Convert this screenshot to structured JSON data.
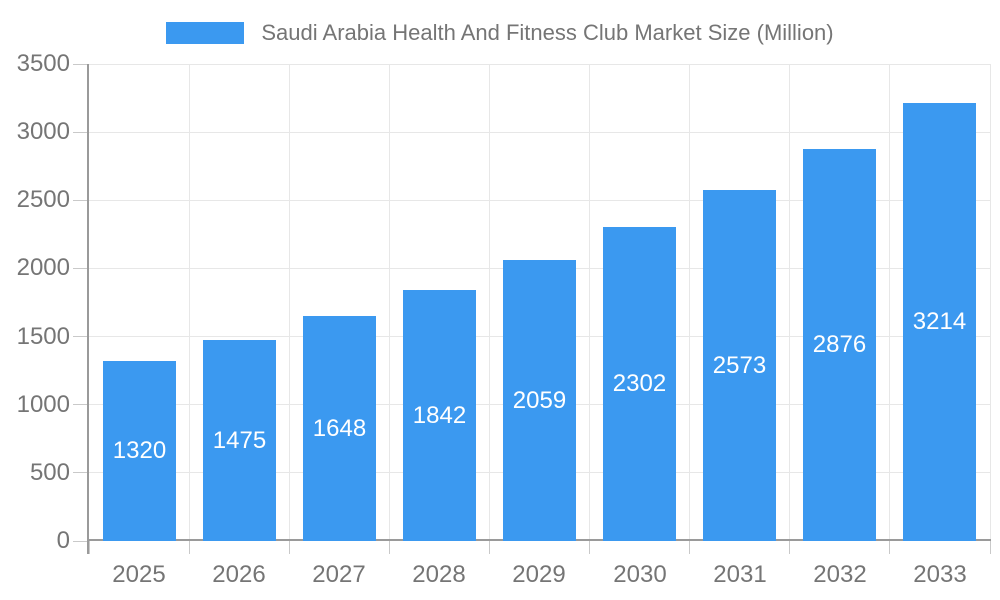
{
  "chart_data": {
    "type": "bar",
    "title": "Saudi Arabia Health And Fitness Club Market Size (Million)",
    "categories": [
      "2025",
      "2026",
      "2027",
      "2028",
      "2029",
      "2030",
      "2031",
      "2032",
      "2033"
    ],
    "values": [
      1320,
      1475,
      1648,
      1842,
      2059,
      2302,
      2573,
      2876,
      3214
    ],
    "xlabel": "",
    "ylabel": "",
    "ylim": [
      0,
      3500
    ],
    "ytick_step": 500,
    "ytick_labels": [
      "0",
      "500",
      "1000",
      "1500",
      "2000",
      "2500",
      "3000",
      "3500"
    ],
    "grid": true,
    "legend_position": "top",
    "value_label_position": "inside-center",
    "colors": {
      "bar": "#3b99f0",
      "grid": "#e7e7e7",
      "axis": "#9a9a9a",
      "tick": "#c9c9c9",
      "label_text": "#757575",
      "value_text": "#ffffff",
      "background": "#ffffff"
    }
  }
}
